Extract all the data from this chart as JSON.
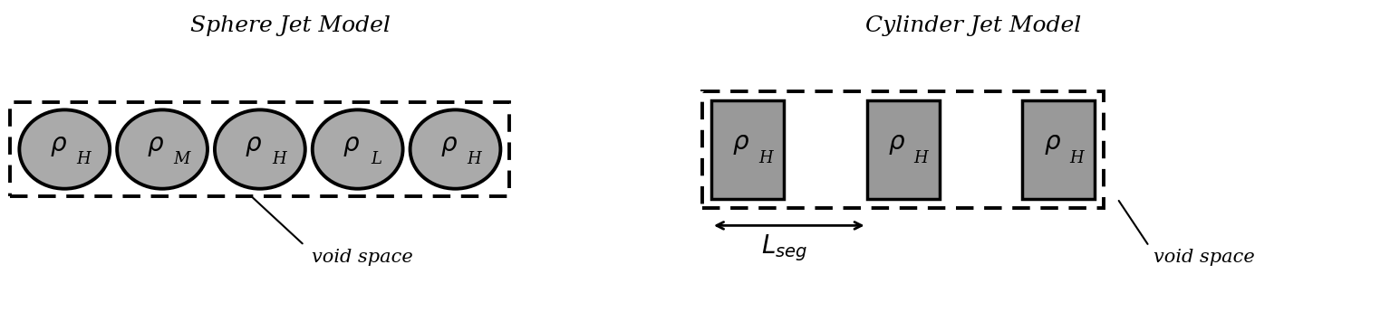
{
  "fig_width": 15.34,
  "fig_height": 3.45,
  "bg_color": "#ffffff",
  "sphere_title": "Sphere Jet Model",
  "cylinder_title": "Cylinder Jet Model",
  "sphere_labels": [
    "H",
    "M",
    "H",
    "L",
    "H"
  ],
  "cylinder_labels": [
    "H",
    "H",
    "H"
  ],
  "sphere_color": "#aaaaaa",
  "cylinder_color": "#999999",
  "title_fontsize": 18,
  "rho_fontsize": 20,
  "sub_fontsize": 13,
  "annotation_fontsize": 15
}
